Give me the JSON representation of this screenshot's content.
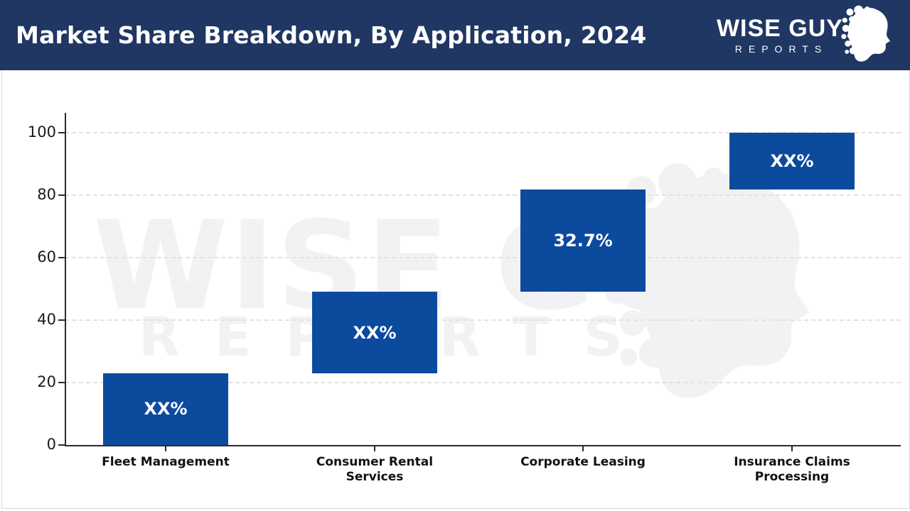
{
  "header": {
    "title": "Market Share Breakdown, By Application, 2024",
    "logo": {
      "brand": "WISE GUY",
      "sub": "REPORTS"
    }
  },
  "watermark": {
    "brand": "WISE GUY",
    "sub": "REPORTS"
  },
  "colors": {
    "header_bg": "#203663",
    "title": "#ffffff",
    "bar": "#0c4a9e",
    "bar_label": "#ffffff",
    "grid": "#e2e2e2",
    "axis": "#2b2b2b",
    "tick": "#1a1a1a",
    "watermark": "#f2f2f4",
    "frame": "#d8d8d8"
  },
  "chart_data": {
    "type": "bar",
    "subtype": "stacked-waterfall-percentage",
    "title": "Market Share Breakdown, By Application, 2024",
    "categories": [
      "Fleet Management",
      "Consumer Rental\nServices",
      "Corporate Leasing",
      "Insurance Claims\nProcessing"
    ],
    "segments": [
      {
        "category": "Fleet Management",
        "start": 0,
        "end": 23,
        "value_label": "XX%"
      },
      {
        "category": "Consumer Rental Services",
        "start": 23,
        "end": 49.1,
        "value_label": "XX%"
      },
      {
        "category": "Corporate Leasing",
        "start": 49.1,
        "end": 81.8,
        "value_label": "32.7%"
      },
      {
        "category": "Insurance Claims Processing",
        "start": 81.8,
        "end": 100,
        "value_label": "XX%"
      }
    ],
    "yticks": [
      0,
      20,
      40,
      60,
      80,
      100
    ],
    "ylim": [
      0,
      105
    ],
    "xlabel": "",
    "ylabel": "",
    "grid": "dashed-horizontal",
    "legend": "none"
  }
}
